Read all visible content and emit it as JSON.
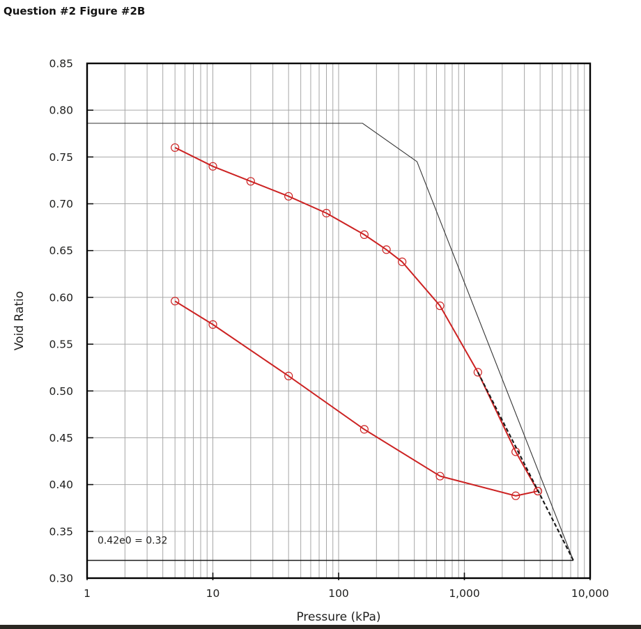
{
  "page": {
    "title": "Question #2 Figure #2B"
  },
  "chart_data": {
    "type": "line",
    "x_axis": {
      "label": "Pressure (kPa)",
      "scale": "log",
      "min": 1,
      "max": 10000,
      "ticks": [
        {
          "value": 1,
          "label": "1"
        },
        {
          "value": 10,
          "label": "10"
        },
        {
          "value": 100,
          "label": "100"
        },
        {
          "value": 1000,
          "label": "1,000"
        },
        {
          "value": 10000,
          "label": "10,000"
        }
      ]
    },
    "y_axis": {
      "label": "Void Ratio",
      "min": 0.3,
      "max": 0.85,
      "tick_step": 0.05,
      "ticks": [
        "0.85",
        "0.80",
        "0.75",
        "0.70",
        "0.65",
        "0.60",
        "0.55",
        "0.50",
        "0.45",
        "0.40",
        "0.35",
        "0.30"
      ]
    },
    "grid": {
      "horizontal_step": 0.05,
      "vertical": "log-minor",
      "color": "#a6a6a6"
    },
    "series": [
      {
        "name": "consolidation-curve-upper",
        "color": "#cc2222",
        "marker": "circle",
        "points": [
          [
            5,
            0.76
          ],
          [
            10,
            0.74
          ],
          [
            20,
            0.724
          ],
          [
            40,
            0.708
          ],
          [
            80,
            0.69
          ],
          [
            160,
            0.667
          ],
          [
            240,
            0.651
          ],
          [
            320,
            0.638
          ],
          [
            640,
            0.591
          ],
          [
            1280,
            0.52
          ],
          [
            2560,
            0.435
          ],
          [
            3840,
            0.393
          ]
        ]
      },
      {
        "name": "consolidation-curve-lower",
        "color": "#cc2222",
        "marker": "circle",
        "points": [
          [
            5,
            0.596
          ],
          [
            10,
            0.571
          ],
          [
            40,
            0.516
          ],
          [
            160,
            0.459
          ],
          [
            640,
            0.409
          ],
          [
            2560,
            0.388
          ],
          [
            3840,
            0.393
          ]
        ]
      }
    ],
    "construction_lines": [
      {
        "name": "field-correction-line",
        "style": "solid",
        "color": "#333333",
        "width": 1.1,
        "points": [
          [
            1,
            0.786
          ],
          [
            155,
            0.786
          ],
          [
            420,
            0.745
          ],
          [
            7350,
            0.319
          ]
        ]
      },
      {
        "name": "virgin-compression-extension",
        "style": "dashed",
        "color": "#1a1a1a",
        "width": 2,
        "points": [
          [
            1280,
            0.52
          ],
          [
            7350,
            0.319
          ]
        ]
      },
      {
        "name": "e-limit-line",
        "style": "solid",
        "color": "#1a1a1a",
        "width": 1.4,
        "points": [
          [
            1,
            0.319
          ],
          [
            7350,
            0.319
          ]
        ]
      }
    ],
    "annotation": {
      "text": "0.42e0 = 0.32",
      "p": 1.21,
      "e": 0.337
    }
  },
  "bottom_bar": {
    "color": "#2b2722"
  }
}
